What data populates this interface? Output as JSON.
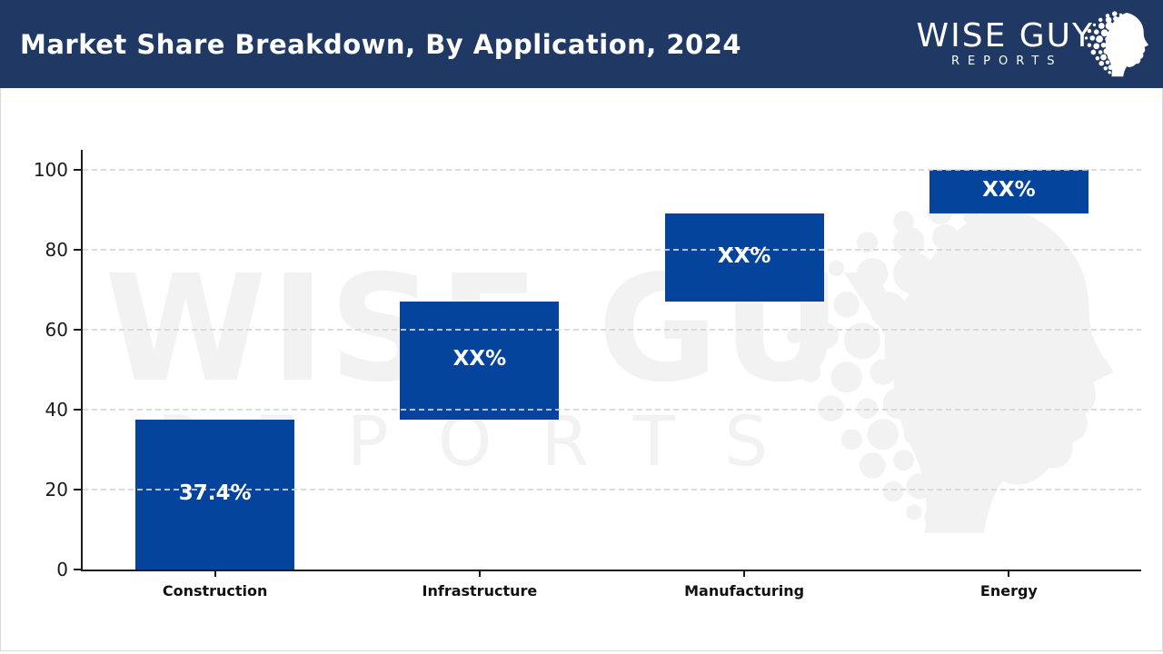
{
  "header": {
    "title": "Market Share Breakdown, By Application, 2024",
    "logo": {
      "line1": "WISE GUY",
      "line2": "REPORTS"
    }
  },
  "watermark": {
    "line1": "WISE GUY",
    "line2": "REPORTS"
  },
  "chart_data": {
    "type": "bar",
    "subtype": "floating-segment-waterfall",
    "title": "Market Share Breakdown, By Application, 2024",
    "categories": [
      "Construction",
      "Infrastructure",
      "Manufacturing",
      "Energy"
    ],
    "segments": [
      {
        "category": "Construction",
        "start": 0,
        "end": 37.4,
        "label": "37.4%"
      },
      {
        "category": "Infrastructure",
        "start": 37.4,
        "end": 67,
        "label": "XX%"
      },
      {
        "category": "Manufacturing",
        "start": 67,
        "end": 89,
        "label": "XX%"
      },
      {
        "category": "Energy",
        "start": 89,
        "end": 100,
        "label": "XX%"
      }
    ],
    "xlabel": "",
    "ylabel": "",
    "yticks": [
      0,
      20,
      40,
      60,
      80,
      100
    ],
    "ylim": [
      0,
      105
    ],
    "grid": "horizontal-dashed",
    "legend": "none",
    "colors": {
      "bar": "#05449c",
      "bar_label": "#ffffff",
      "axis": "#1a1a1a",
      "grid": "#d9d9d9",
      "header_bg": "#1f3864",
      "watermark": "#f2f2f2"
    }
  }
}
